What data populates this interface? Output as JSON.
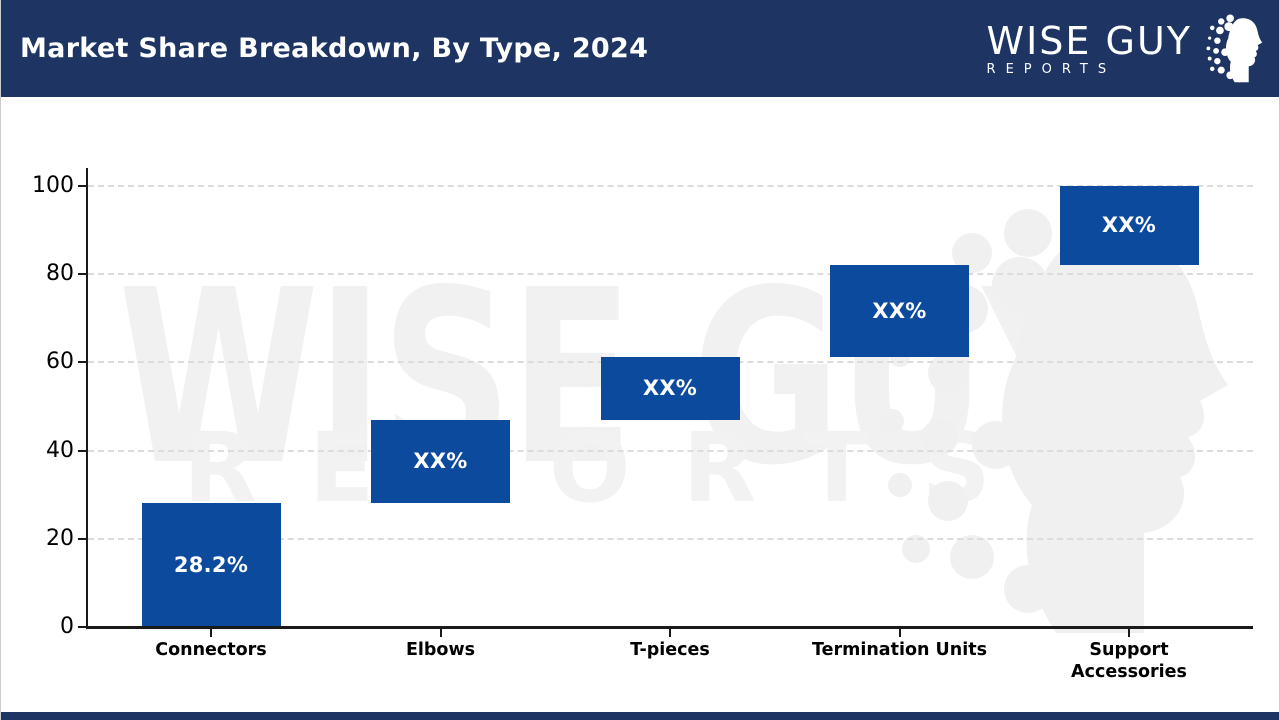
{
  "header": {
    "title": "Market Share Breakdown, By Type, 2024",
    "logo": {
      "wordmark": "WISE GUY",
      "sub": "REPORTS"
    }
  },
  "watermark": {
    "wordmark": "WISE GUY",
    "sub": "REPORTS"
  },
  "colors": {
    "header_bg": "#1e3564",
    "footer_bg": "#1e3564",
    "bar": "#0c4a9e",
    "axis": "#1a1a1a",
    "gridline": "#dcdcdc",
    "watermark": "#f1f1f1",
    "title_text": "#ffffff",
    "bar_label_text": "#ffffff"
  },
  "chart_data": {
    "type": "bar",
    "subtype": "waterfall",
    "title": "Market Share Breakdown, By Type, 2024",
    "categories": [
      "Connectors",
      "Elbows",
      "T-pieces",
      "Termination Units",
      "Support Accessories"
    ],
    "series": [
      {
        "category": "Connectors",
        "start": 0,
        "end": 28.2,
        "value": 28.2,
        "label": "28.2%"
      },
      {
        "category": "Elbows",
        "start": 28.2,
        "end": 47.0,
        "value": 18.8,
        "label": "XX%"
      },
      {
        "category": "T-pieces",
        "start": 47.0,
        "end": 61.2,
        "value": 14.2,
        "label": "XX%"
      },
      {
        "category": "Termination Units",
        "start": 61.2,
        "end": 82.1,
        "value": 20.9,
        "label": "XX%"
      },
      {
        "category": "Support Accessories",
        "start": 82.1,
        "end": 100,
        "value": 17.9,
        "label": "XX%"
      }
    ],
    "ylim": [
      0,
      100
    ],
    "yticks": [
      0,
      20,
      40,
      60,
      80,
      100
    ],
    "xlabel": "",
    "ylabel": "",
    "grid": "horizontal-dashed",
    "legend": "none"
  }
}
